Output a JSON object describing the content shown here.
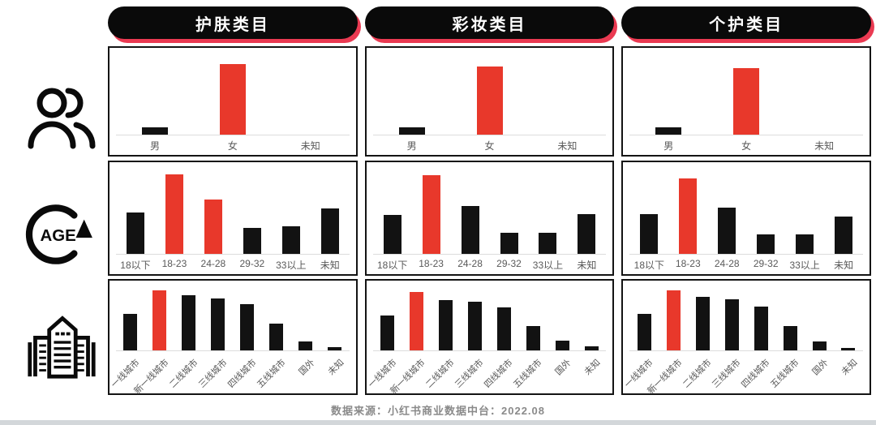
{
  "header": {
    "categories": [
      "护肤类目",
      "彩妆类目",
      "个护类目"
    ]
  },
  "sidebar": {
    "age_label": "AGE"
  },
  "footer": {
    "text": "数据来源：小红书商业数据中台：2022.08"
  },
  "colors": {
    "accent_red": "#e8382b",
    "bar_black": "#121212",
    "pill_bg": "#0a0a0a",
    "pill_shadow": "#ea3a52"
  },
  "chart_data": [
    {
      "id": "skincare-gender",
      "type": "bar",
      "group": "护肤类目",
      "dimension": "性别",
      "categories": [
        "男",
        "女",
        "未知"
      ],
      "values": [
        9,
        90,
        0
      ],
      "bar_colors": [
        "black",
        "red",
        "black"
      ],
      "ylim": [
        0,
        100
      ],
      "grid": false,
      "legend": "none"
    },
    {
      "id": "skincare-age",
      "type": "bar",
      "group": "护肤类目",
      "dimension": "年龄",
      "categories": [
        "18以下",
        "18-23",
        "24-28",
        "29-32",
        "33以上",
        "未知"
      ],
      "values": [
        50,
        95,
        65,
        31,
        33,
        54
      ],
      "bar_colors": [
        "black",
        "red",
        "red",
        "black",
        "black",
        "black"
      ],
      "ylim": [
        0,
        100
      ],
      "grid": false,
      "legend": "none"
    },
    {
      "id": "skincare-city",
      "type": "bar",
      "group": "护肤类目",
      "dimension": "城市",
      "categories": [
        "一线城市",
        "新一线城市",
        "二线城市",
        "三线城市",
        "四线城市",
        "五线城市",
        "国外",
        "未知"
      ],
      "values": [
        59,
        97,
        89,
        84,
        75,
        43,
        14,
        5
      ],
      "bar_colors": [
        "black",
        "red",
        "black",
        "black",
        "black",
        "black",
        "black",
        "black"
      ],
      "ylim": [
        0,
        100
      ],
      "grid": false,
      "legend": "none"
    },
    {
      "id": "makeup-gender",
      "type": "bar",
      "group": "彩妆类目",
      "dimension": "性别",
      "categories": [
        "男",
        "女",
        "未知"
      ],
      "values": [
        9,
        87,
        0
      ],
      "bar_colors": [
        "black",
        "red",
        "black"
      ],
      "ylim": [
        0,
        100
      ],
      "grid": false,
      "legend": "none"
    },
    {
      "id": "makeup-age",
      "type": "bar",
      "group": "彩妆类目",
      "dimension": "年龄",
      "categories": [
        "18以下",
        "18-23",
        "24-28",
        "29-32",
        "33以上",
        "未知"
      ],
      "values": [
        47,
        94,
        57,
        25,
        25,
        48
      ],
      "bar_colors": [
        "black",
        "red",
        "black",
        "black",
        "black",
        "black"
      ],
      "ylim": [
        0,
        100
      ],
      "grid": false,
      "legend": "none"
    },
    {
      "id": "makeup-city",
      "type": "bar",
      "group": "彩妆类目",
      "dimension": "城市",
      "categories": [
        "一线城市",
        "新一线城市",
        "二线城市",
        "三线城市",
        "四线城市",
        "五线城市",
        "国外",
        "未知"
      ],
      "values": [
        56,
        95,
        82,
        79,
        70,
        40,
        16,
        7
      ],
      "bar_colors": [
        "black",
        "red",
        "black",
        "black",
        "black",
        "black",
        "black",
        "black"
      ],
      "ylim": [
        0,
        100
      ],
      "grid": false,
      "legend": "none"
    },
    {
      "id": "personalcare-gender",
      "type": "bar",
      "group": "个护类目",
      "dimension": "性别",
      "categories": [
        "男",
        "女",
        "未知"
      ],
      "values": [
        9,
        85,
        0
      ],
      "bar_colors": [
        "black",
        "red",
        "black"
      ],
      "ylim": [
        0,
        100
      ],
      "grid": false,
      "legend": "none"
    },
    {
      "id": "personalcare-age",
      "type": "bar",
      "group": "个护类目",
      "dimension": "年龄",
      "categories": [
        "18以下",
        "18-23",
        "24-28",
        "29-32",
        "33以上",
        "未知"
      ],
      "values": [
        48,
        90,
        55,
        23,
        23,
        45
      ],
      "bar_colors": [
        "black",
        "red",
        "black",
        "black",
        "black",
        "black"
      ],
      "ylim": [
        0,
        100
      ],
      "grid": false,
      "legend": "none"
    },
    {
      "id": "personalcare-city",
      "type": "bar",
      "group": "个护类目",
      "dimension": "城市",
      "categories": [
        "一线城市",
        "新一线城市",
        "二线城市",
        "三线城市",
        "四线城市",
        "五线城市",
        "国外",
        "未知"
      ],
      "values": [
        59,
        97,
        87,
        83,
        71,
        40,
        14,
        4
      ],
      "bar_colors": [
        "black",
        "red",
        "black",
        "black",
        "black",
        "black",
        "black",
        "black"
      ],
      "ylim": [
        0,
        100
      ],
      "grid": false,
      "legend": "none"
    }
  ]
}
